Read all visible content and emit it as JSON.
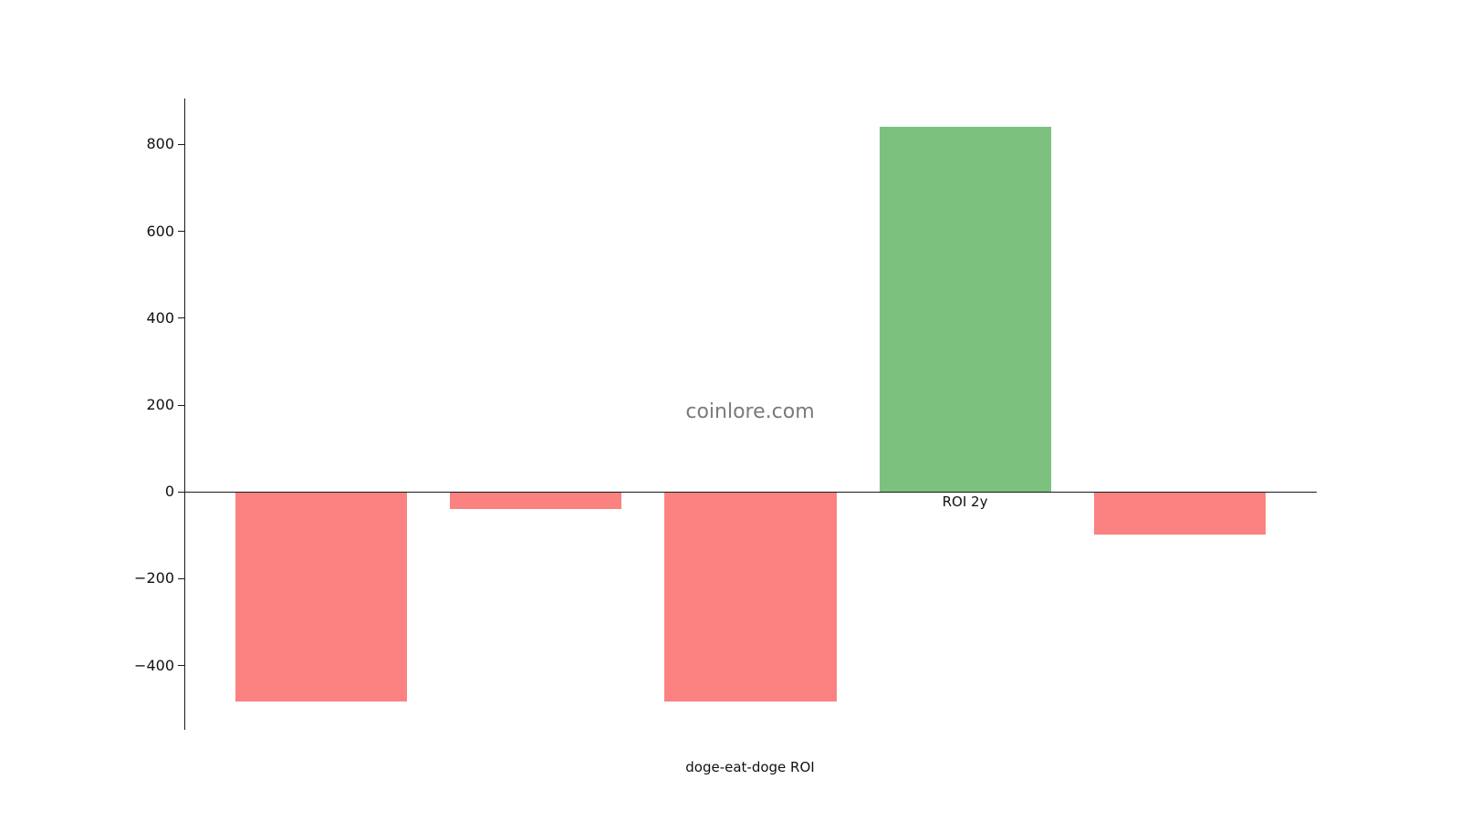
{
  "chart_data": {
    "type": "bar",
    "categories": [
      "",
      "",
      "",
      "ROI 2y",
      ""
    ],
    "values": [
      -482,
      -40,
      -482,
      840,
      -98
    ],
    "bar_colors": [
      "#fc8181",
      "#fc8181",
      "#fc8181",
      "#7cc17e",
      "#fc8181"
    ],
    "title": "",
    "xlabel": "doge-eat-doge ROI",
    "ylabel": "",
    "yticks": [
      {
        "value": 800,
        "label": "800"
      },
      {
        "value": 600,
        "label": "600"
      },
      {
        "value": 400,
        "label": "400"
      },
      {
        "value": 200,
        "label": "200"
      },
      {
        "value": 0,
        "label": "0"
      },
      {
        "value": -200,
        "label": "−200"
      },
      {
        "value": -400,
        "label": "−400"
      }
    ],
    "ylim": [
      -548,
      906
    ],
    "xlim": [
      -0.64,
      4.64
    ],
    "bar_width_fraction": 0.8,
    "grid": false,
    "legend": "none",
    "watermark": "coinlore.com",
    "colors": {
      "negative": "#fc8181",
      "positive": "#7cc17e",
      "axis": "#1a1a1a",
      "watermark_text": "#7a7a7a"
    }
  }
}
